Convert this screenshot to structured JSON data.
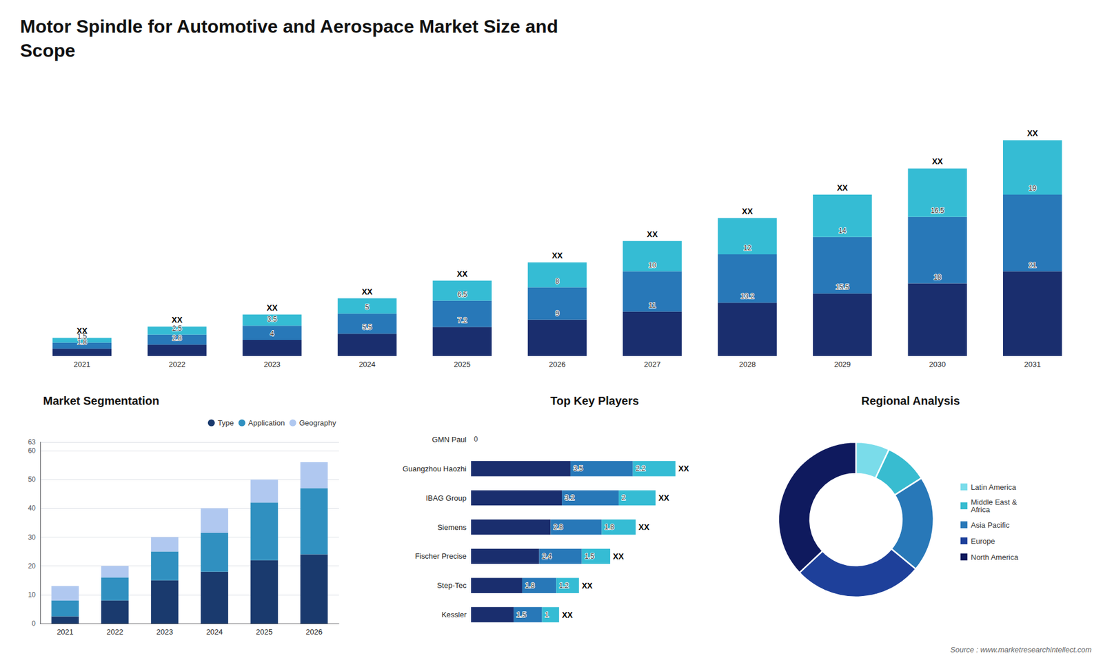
{
  "chart_data": [
    {
      "type": "bar",
      "title": "Motor Spindle for Automotive and Aerospace Market Size and\nScope",
      "annotations": [
        "Source : www.marketresearchintellect.com"
      ],
      "categories": [
        "2021",
        "2022",
        "2023",
        "2024",
        "2025",
        "2026",
        "2027",
        "2028",
        "2029",
        "2030",
        "2031"
      ],
      "stacked": true,
      "series": [
        {
          "color": "#1a2e6e",
          "values": [
            1.8,
            2.8,
            4.0,
            5.5,
            7.2,
            9.0,
            11.0,
            13.2,
            15.5,
            18.0,
            21.0
          ]
        },
        {
          "color": "#2878b8",
          "values": [
            1.5,
            2.5,
            3.5,
            5.0,
            6.5,
            8.0,
            10.0,
            12.0,
            14.0,
            16.5,
            19.0
          ]
        },
        {
          "color": "#35bcd4",
          "values": [
            1.2,
            2.0,
            2.8,
            3.8,
            5.0,
            6.2,
            7.5,
            9.0,
            10.5,
            12.0,
            13.5
          ],
          "value_labels": [
            "XX",
            "XX",
            "XX",
            "XX",
            "XX",
            "XX",
            "XX",
            "XX",
            "XX",
            "XX",
            "XX"
          ]
        }
      ],
      "data_labels": true,
      "ylim": [
        0,
        65.5
      ],
      "tick_labels": "x",
      "grid": false
    },
    {
      "type": "bar",
      "title": "Market Segmentation",
      "categories": [
        "2021",
        "2022",
        "2023",
        "2024",
        "2025",
        "2026"
      ],
      "stacked": true,
      "series": [
        {
          "name": "Type",
          "color": "#1a3a6e",
          "values": [
            2.5,
            8.0,
            15.0,
            18.0,
            22.0,
            24.0
          ]
        },
        {
          "name": "Application",
          "color": "#3090c0",
          "values": [
            5.5,
            8.0,
            10.0,
            13.5,
            20.0,
            23.0
          ]
        },
        {
          "name": "Geography",
          "color": "#b0c8f0",
          "values": [
            5.0,
            4.0,
            5.0,
            8.5,
            8.0,
            9.0
          ]
        }
      ],
      "ylim": [
        0,
        63
      ],
      "yticks": [
        0,
        10,
        20,
        30,
        40,
        50,
        60
      ],
      "grid": true,
      "legend": "upper right"
    },
    {
      "type": "bar",
      "title": "Top Key Players",
      "orientation": "horizontal",
      "categories": [
        "GMN Paul",
        "Guangzhou Haozhi",
        "IBAG Group",
        "Siemens",
        "Fischer Precise",
        "Step-Tec",
        "Kessler"
      ],
      "stacked": true,
      "series": [
        {
          "color": "#1a2e6e",
          "values": [
            0,
            3.5,
            3.2,
            2.8,
            2.4,
            1.8,
            1.5
          ]
        },
        {
          "color": "#2878b8",
          "values": [
            0,
            2.2,
            2.0,
            1.8,
            1.5,
            1.2,
            1.0
          ]
        },
        {
          "color": "#35bcd4",
          "values": [
            0,
            1.5,
            1.3,
            1.2,
            1.0,
            0.8,
            0.6
          ],
          "value_labels": [
            null,
            "XX",
            "XX",
            "XX",
            "XX",
            "XX",
            "XX"
          ]
        }
      ],
      "data_labels": true,
      "xlim": [
        0,
        8.5
      ],
      "tick_labels": "y",
      "grid": false
    },
    {
      "type": "pie",
      "title": "Regional Analysis",
      "categories": [
        "Latin America",
        "Middle East &\nAfrica",
        "Asia Pacific",
        "Europe",
        "North America"
      ],
      "values": [
        7,
        9,
        20,
        27,
        37
      ],
      "colors": [
        "#7adcea",
        "#38bcd0",
        "#2878b8",
        "#1e409a",
        "#0f1a5e"
      ],
      "legend": "right"
    }
  ]
}
